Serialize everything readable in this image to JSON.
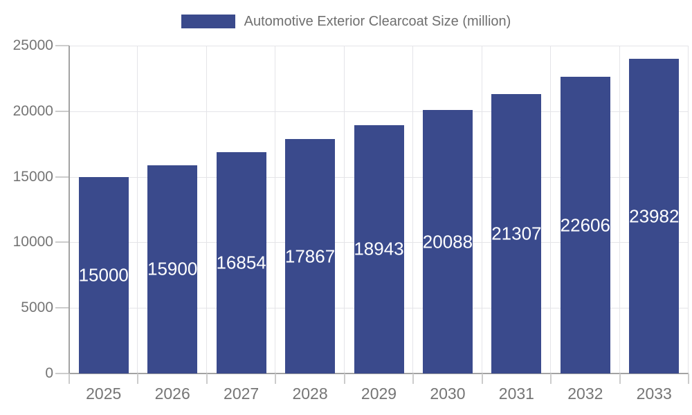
{
  "legend": {
    "label": "Automotive Exterior Clearcoat Size (million)"
  },
  "chart_data": {
    "type": "bar",
    "title": "Automotive Exterior Clearcoat Size (million)",
    "categories": [
      "2025",
      "2026",
      "2027",
      "2028",
      "2029",
      "2030",
      "2031",
      "2032",
      "2033"
    ],
    "values": [
      15000,
      15900,
      16854,
      17867,
      18943,
      20088,
      21307,
      22606,
      23982
    ],
    "xlabel": "",
    "ylabel": "",
    "ylim": [
      0,
      25000
    ],
    "yticks": [
      0,
      5000,
      10000,
      15000,
      20000,
      25000
    ],
    "grid": true,
    "legend_position": "top-center",
    "bar_color": "#3a4a8c",
    "value_label_color": "#ffffff",
    "colors": {
      "grid_line": "#e4e4e8",
      "axis_line": "#a3a3a3",
      "tick_mark": "#cccccc",
      "tick_label": "#757575",
      "legend_text": "#6f6f6f",
      "background": "#ffffff"
    }
  }
}
